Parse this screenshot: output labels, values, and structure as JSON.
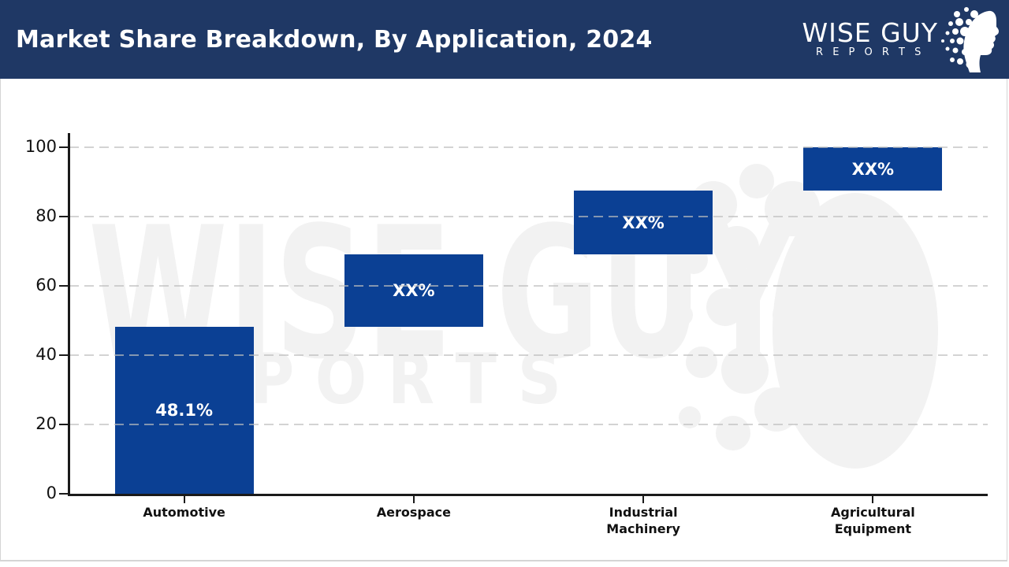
{
  "header": {
    "title": "Market Share Breakdown, By Application, 2024",
    "logo": {
      "line1": "WISE GUY",
      "line2": "R E P O R T S"
    }
  },
  "watermark": {
    "line1": "WISE GUY",
    "line2": "R E P O R T S"
  },
  "colors": {
    "header_bg": "#1f3865",
    "bar": "#0b4094",
    "axis": "#1a1a1a",
    "gridline": "#c9c9c9",
    "watermark": "#f2f2f2",
    "bar_label": "#ffffff",
    "title_text": "#ffffff"
  },
  "chart_data": {
    "type": "bar",
    "subtype": "waterfall",
    "title": "Market Share Breakdown, By Application, 2024",
    "xlabel": "",
    "ylabel": "",
    "categories": [
      "Automotive",
      "Aerospace",
      "Industrial Machinery",
      "Agricultural Equipment"
    ],
    "category_lines": [
      [
        "Automotive"
      ],
      [
        "Aerospace"
      ],
      [
        "Industrial",
        "Machinery"
      ],
      [
        "Agricultural",
        "Equipment"
      ]
    ],
    "bars": [
      {
        "category": "Automotive",
        "start": 0,
        "end": 48.1,
        "label": "48.1%"
      },
      {
        "category": "Aerospace",
        "start": 48.1,
        "end": 69,
        "label": "XX%"
      },
      {
        "category": "Industrial Machinery",
        "start": 69,
        "end": 87.5,
        "label": "XX%"
      },
      {
        "category": "Agricultural Equipment",
        "start": 87.5,
        "end": 100,
        "label": "XX%"
      }
    ],
    "yticks": [
      0,
      20,
      40,
      60,
      80,
      100
    ],
    "ylim": [
      0,
      104
    ],
    "grid": {
      "horizontal": true,
      "style": "dashed"
    },
    "legend": null
  }
}
